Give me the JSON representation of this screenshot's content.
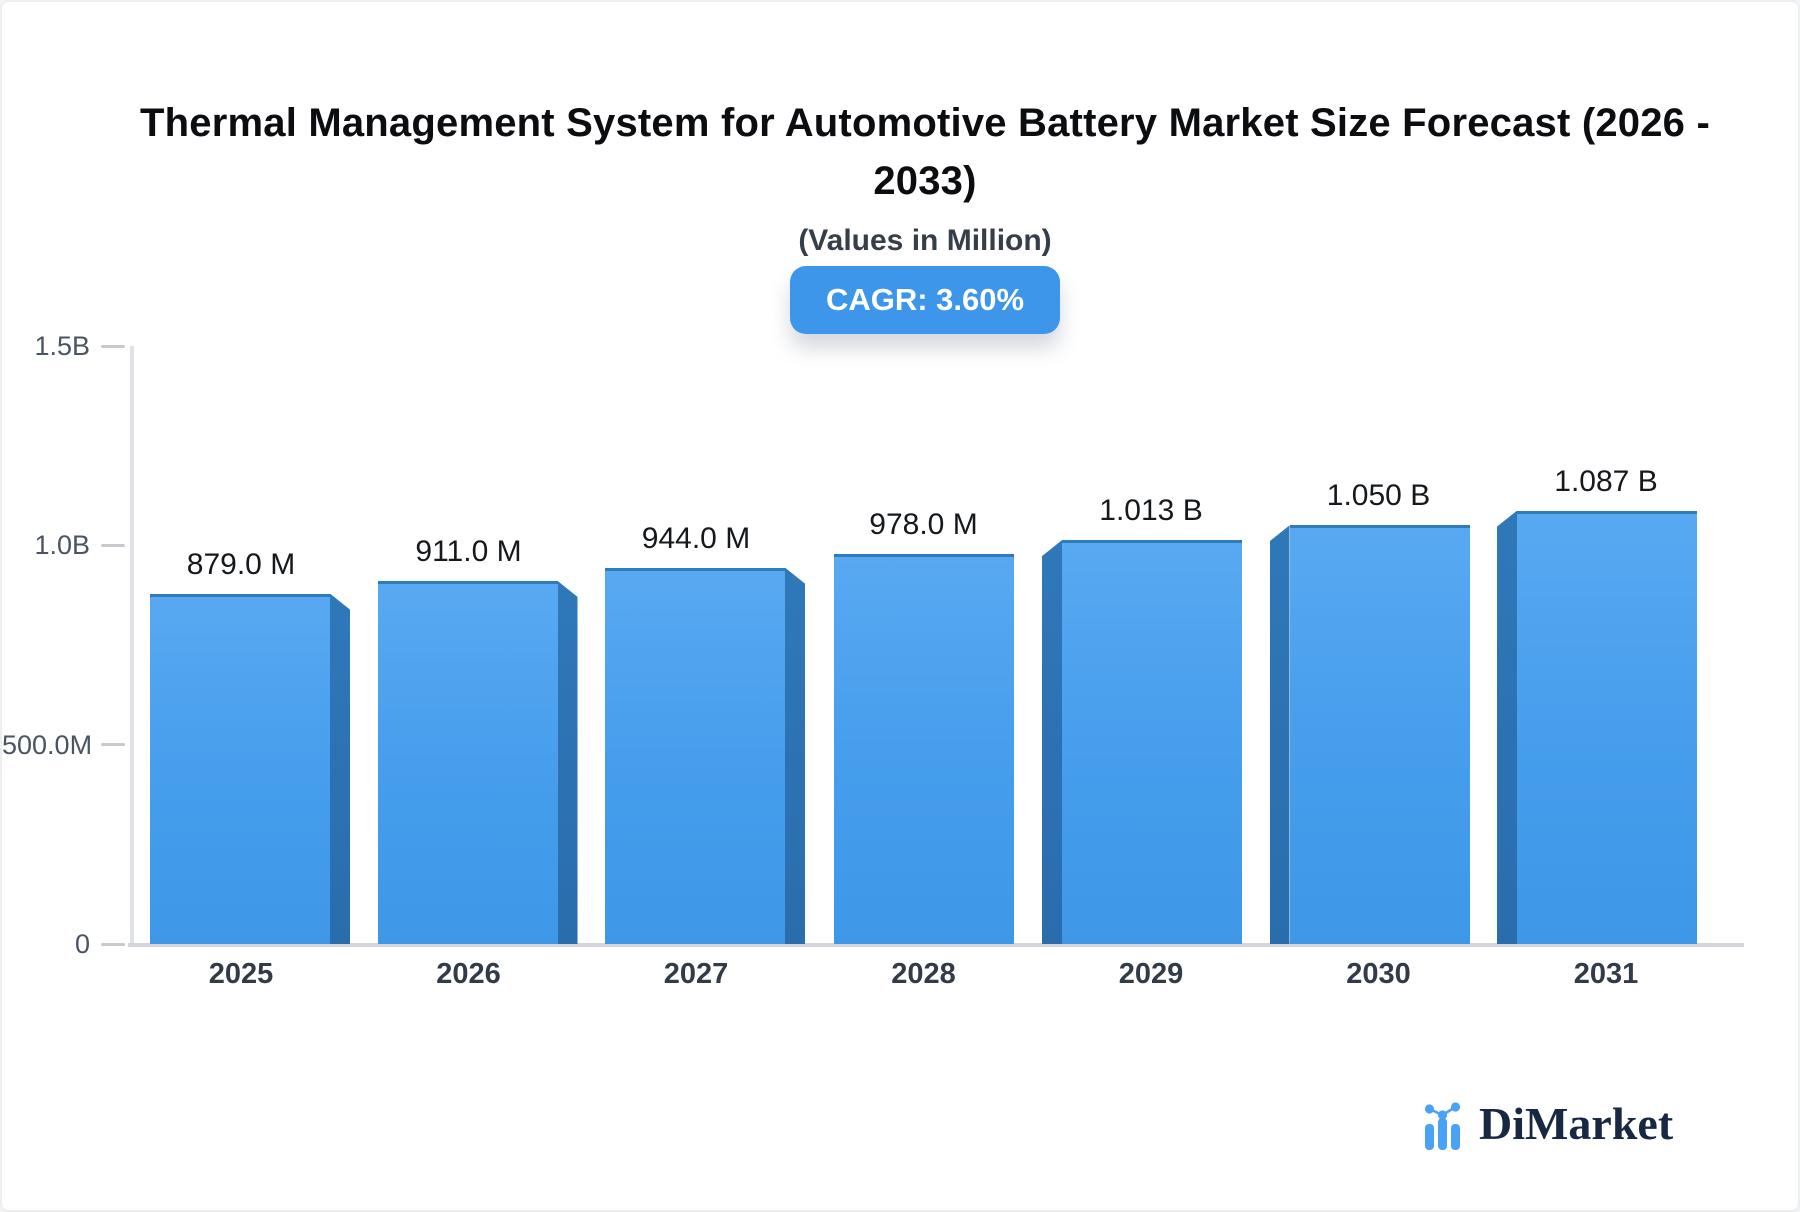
{
  "header": {
    "title": "Thermal Management System for Automotive Battery Market Size Forecast (2026 - 2033)",
    "subtitle": "(Values in Million)",
    "cagr_label": "CAGR: 3.60%"
  },
  "logo": {
    "text": "DiMarket"
  },
  "chart_data": {
    "type": "bar",
    "title": "Thermal Management System for Automotive Battery Market Size Forecast (2026 - 2033)",
    "subtitle": "(Values in Million)",
    "cagr_pct": 3.6,
    "categories": [
      "2025",
      "2026",
      "2027",
      "2028",
      "2029",
      "2030",
      "2031"
    ],
    "values_millions": [
      879,
      911,
      944,
      978,
      1013,
      1050,
      1087
    ],
    "bar_labels": [
      "879.0 M",
      "911.0 M",
      "944.0 M",
      "978.0 M",
      "1.013 B",
      "1.050 B",
      "1.087 B"
    ],
    "y_axis": {
      "max_millions": 1500,
      "ticks": [
        {
          "value": 0,
          "label": "0"
        },
        {
          "value": 500,
          "label": "500.0M"
        },
        {
          "value": 1000,
          "label": "1.0B"
        },
        {
          "value": 1500,
          "label": "1.5B"
        }
      ]
    },
    "grid": false,
    "legend": false,
    "colors": {
      "bar_front_top": "#58a9f1",
      "bar_front_bottom": "#3f97e8",
      "bar_side": "#2d74b5",
      "badge_bg": "#3e96ea",
      "badge_text": "#ffffff",
      "logo_navy": "#182742",
      "logo_blue": "#4aa2f7"
    }
  }
}
